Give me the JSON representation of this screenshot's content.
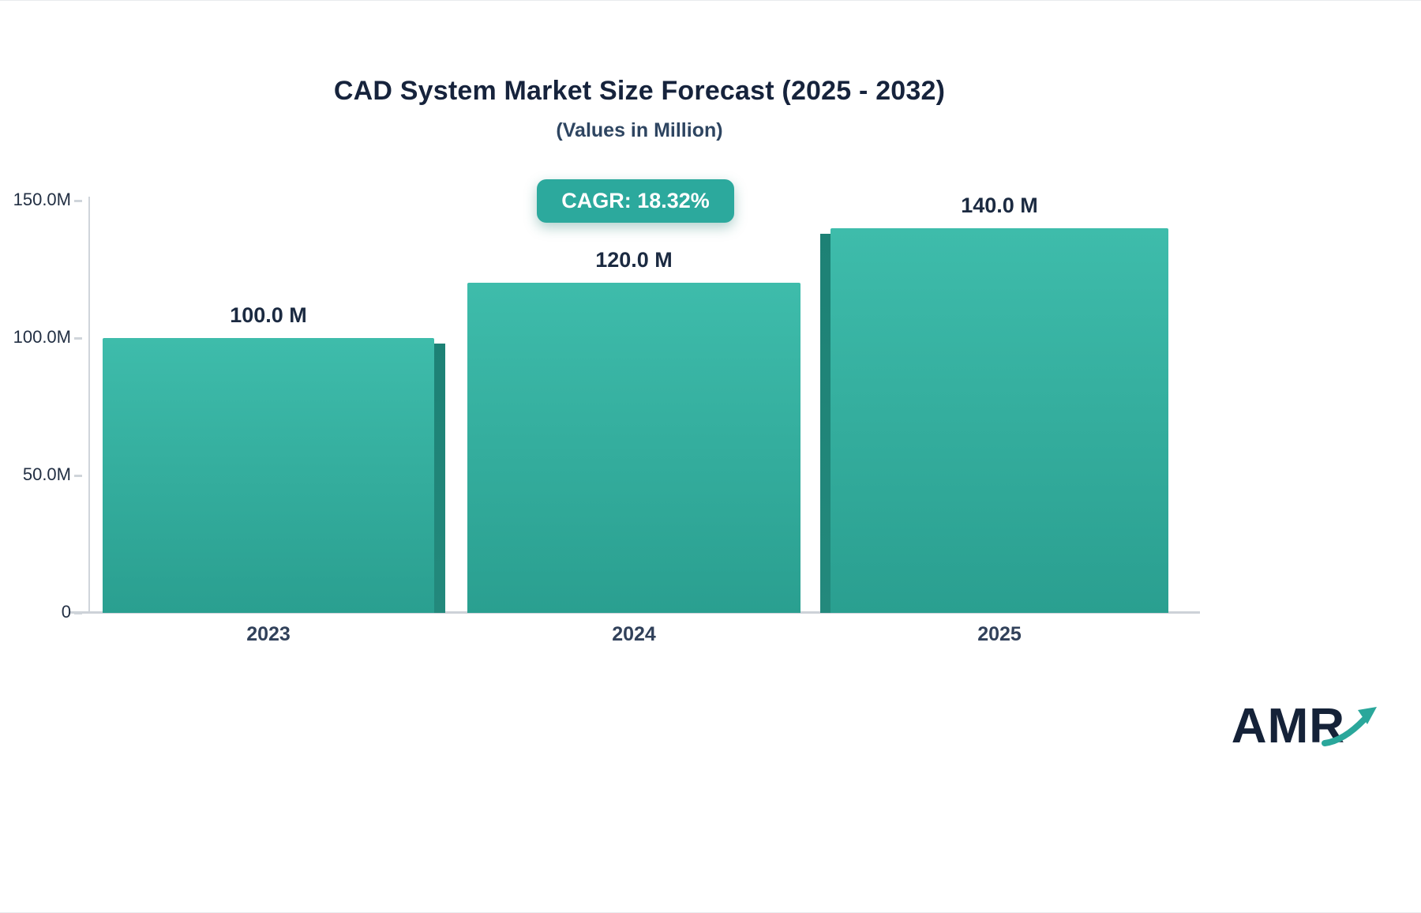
{
  "chart_data": {
    "type": "bar",
    "title": "CAD System Market Size Forecast (2025 - 2032)",
    "subtitle": "(Values in Million)",
    "badge_label": "CAGR: 18.32%",
    "categories": [
      "2023",
      "2024",
      "2025"
    ],
    "values": [
      100.0,
      120.0,
      140.0
    ],
    "value_labels": [
      "100.0 M",
      "120.0 M",
      "140.0 M"
    ],
    "y_tick_labels": [
      "150.0M",
      "100.0M",
      "50.0M",
      "0"
    ],
    "y_tick_values": [
      150,
      100,
      50,
      0
    ],
    "ylim": [
      0,
      150
    ],
    "grid": "off",
    "legend": "none",
    "colors": {
      "bar_top": "#3ebcab",
      "bar_bottom": "#2a9f90",
      "bar_edge_top": "#1d8175",
      "bar_edge_bottom": "#23897c",
      "badge_bg": "#2ca99d",
      "title_text": "#16233c",
      "axis_line": "#d0d5db",
      "logo_arrow": "#2aa79b"
    }
  },
  "logo": {
    "text": "AMR",
    "arrow_icon": "trending-up-arrow"
  }
}
